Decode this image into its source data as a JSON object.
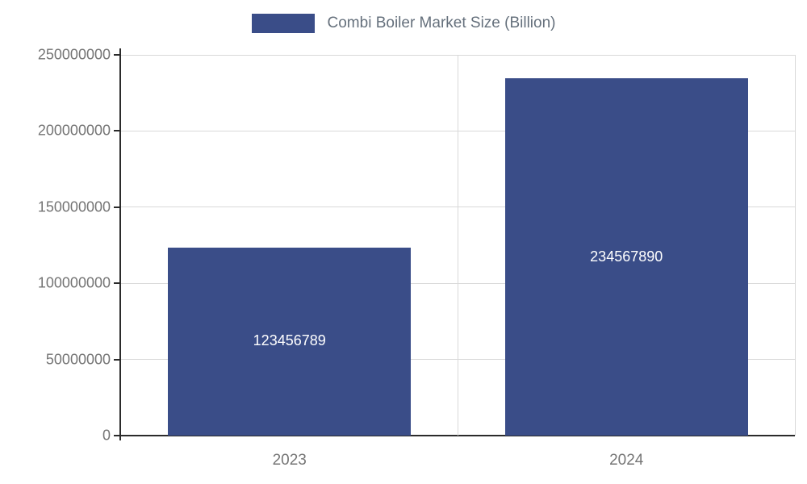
{
  "chart_data": {
    "type": "bar",
    "title": "Combi Boiler Market Size (Billion)",
    "categories": [
      "2023",
      "2024"
    ],
    "values": [
      123456789,
      234567890
    ],
    "value_labels": [
      "123456789",
      "234567890"
    ],
    "xlabel": "",
    "ylabel": "",
    "ylim": [
      0,
      250000000
    ],
    "y_ticks": [
      0,
      50000000,
      100000000,
      150000000,
      200000000,
      250000000
    ],
    "y_tick_labels": [
      "0",
      "50000000",
      "100000000",
      "150000000",
      "200000000",
      "250000000"
    ],
    "grid": true,
    "legend_position": "top",
    "colors": {
      "bar": "#3a4d88",
      "gridline": "#d9d9d9",
      "axis": "#2b2b2b",
      "tick_text": "#757575",
      "legend_text": "#65707c",
      "value_text": "#ffffff"
    }
  }
}
